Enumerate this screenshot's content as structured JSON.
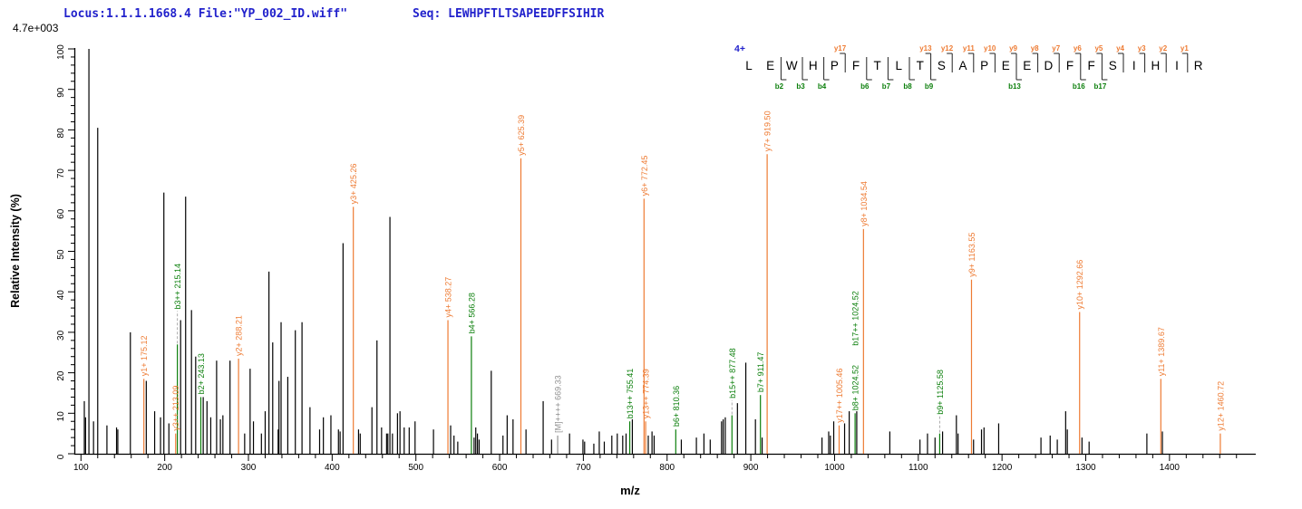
{
  "header": {
    "locus_file": "Locus:1.1.1.1668.4 File:\"YP_002_ID.wiff\"",
    "seq_label": "Seq: LEWHPFTLTSAPEEDFFSIHIR",
    "max_intensity": "4.7e+003"
  },
  "colors": {
    "header_blue": "#2222CC",
    "y_ion": "#EE7B33",
    "b_ion": "#0B7F0B",
    "precursor_gray": "#8F8F8F",
    "axis": "#000000"
  },
  "sequence_panel": {
    "charge_label": "4+",
    "sequence": "LEWHPFTLTSAPEEDFFSIHIR",
    "y_ions": [
      {
        "gap": 5,
        "label": "y17"
      },
      {
        "gap": 9,
        "label": "y13"
      },
      {
        "gap": 10,
        "label": "y12"
      },
      {
        "gap": 11,
        "label": "y11"
      },
      {
        "gap": 12,
        "label": "y10"
      },
      {
        "gap": 13,
        "label": "y9"
      },
      {
        "gap": 14,
        "label": "y8"
      },
      {
        "gap": 15,
        "label": "y7"
      },
      {
        "gap": 16,
        "label": "y6"
      },
      {
        "gap": 17,
        "label": "y5"
      },
      {
        "gap": 18,
        "label": "y4"
      },
      {
        "gap": 19,
        "label": "y3"
      },
      {
        "gap": 20,
        "label": "y2"
      },
      {
        "gap": 21,
        "label": "y1"
      }
    ],
    "b_ions": [
      {
        "gap": 2,
        "label": "b2"
      },
      {
        "gap": 3,
        "label": "b3"
      },
      {
        "gap": 4,
        "label": "b4"
      },
      {
        "gap": 6,
        "label": "b6"
      },
      {
        "gap": 7,
        "label": "b7"
      },
      {
        "gap": 8,
        "label": "b8"
      },
      {
        "gap": 9,
        "label": "b9"
      },
      {
        "gap": 13,
        "label": "b13"
      },
      {
        "gap": 16,
        "label": "b16"
      },
      {
        "gap": 17,
        "label": "b17"
      }
    ]
  },
  "chart_data": {
    "type": "bar",
    "subtype": "ms2-stick-spectrum",
    "title": "",
    "xlabel": "m/z",
    "ylabel": "Relative  Intensity (%)",
    "xlim": [
      90,
      1490
    ],
    "ylim": [
      0,
      100
    ],
    "x_major_ticks": [
      100,
      200,
      300,
      400,
      500,
      600,
      700,
      800,
      900,
      1000,
      1100,
      1200,
      1300,
      1400
    ],
    "x_minor_step": 20,
    "y_major_ticks": [
      0,
      10,
      20,
      30,
      40,
      50,
      60,
      70,
      80,
      90,
      100
    ],
    "y_minor_step": 2,
    "grid": false,
    "legend": "none",
    "peak_schema": [
      "mz",
      "intensity_pct",
      "label",
      "ion_type",
      "label_height_pct"
    ],
    "peaks": [
      [
        104,
        13
      ],
      [
        105.5,
        9
      ],
      [
        109.5,
        100
      ],
      [
        115,
        8
      ],
      [
        120,
        80.5
      ],
      [
        131,
        7
      ],
      [
        142.5,
        6.5
      ],
      [
        144,
        6
      ],
      [
        159,
        30
      ],
      [
        175.12,
        18.5,
        "y1+ 175.12",
        "y"
      ],
      [
        178,
        18
      ],
      [
        188,
        10.5
      ],
      [
        195,
        9
      ],
      [
        199,
        64.5
      ],
      [
        205,
        7.5
      ],
      [
        213.09,
        5,
        "y3++ 213.09",
        "y"
      ],
      [
        215.14,
        27,
        "b3++ 215.14",
        "b",
        35
      ],
      [
        219,
        33
      ],
      [
        225,
        63.5
      ],
      [
        232,
        35.5
      ],
      [
        237,
        24
      ],
      [
        243.13,
        14,
        "b2+ 243.13",
        "b"
      ],
      [
        246,
        14
      ],
      [
        250.5,
        13
      ],
      [
        255,
        9
      ],
      [
        262,
        23
      ],
      [
        266.5,
        8.5
      ],
      [
        269.5,
        9.5
      ],
      [
        278,
        23
      ],
      [
        288.21,
        23.5,
        "y2+ 288.21",
        "y"
      ],
      [
        295.5,
        5
      ],
      [
        302,
        21
      ],
      [
        306,
        8
      ],
      [
        315.5,
        5
      ],
      [
        320,
        10.5
      ],
      [
        324.5,
        45
      ],
      [
        329,
        27.5
      ],
      [
        335.5,
        6
      ],
      [
        336.5,
        18
      ],
      [
        339,
        32.5
      ],
      [
        347,
        19
      ],
      [
        356,
        30.5
      ],
      [
        364,
        32.5
      ],
      [
        373.5,
        11.5
      ],
      [
        385,
        6
      ],
      [
        389.5,
        9
      ],
      [
        398.5,
        9.5
      ],
      [
        407.5,
        6
      ],
      [
        409.5,
        5.5
      ],
      [
        413,
        52
      ],
      [
        425.26,
        61,
        "y3+ 425.26",
        "y"
      ],
      [
        431.5,
        6
      ],
      [
        433.5,
        5
      ],
      [
        447.5,
        11.5
      ],
      [
        453.5,
        28
      ],
      [
        459,
        6.5
      ],
      [
        465,
        5
      ],
      [
        466.5,
        5
      ],
      [
        469,
        58.5
      ],
      [
        472,
        5
      ],
      [
        478,
        10
      ],
      [
        481,
        10.5
      ],
      [
        486,
        6.5
      ],
      [
        492,
        6.5
      ],
      [
        499,
        8
      ],
      [
        521,
        6
      ],
      [
        538.27,
        33,
        "y4+ 538.27",
        "y"
      ],
      [
        541.5,
        7
      ],
      [
        545.5,
        4.5
      ],
      [
        550,
        3
      ],
      [
        566.28,
        29,
        "b4+ 566.28",
        "b"
      ],
      [
        569.5,
        4
      ],
      [
        571.5,
        6.5
      ],
      [
        573.5,
        5
      ],
      [
        575.5,
        3.5
      ],
      [
        590,
        20.5
      ],
      [
        604,
        4.5
      ],
      [
        609,
        9.5
      ],
      [
        616,
        8.5
      ],
      [
        625.39,
        73,
        "y5+ 625.39",
        "y"
      ],
      [
        631.5,
        6
      ],
      [
        652,
        13
      ],
      [
        662,
        3.5
      ],
      [
        669.33,
        4.5,
        "[M]++++ 669.33",
        "M"
      ],
      [
        683.5,
        5
      ],
      [
        699.5,
        3.5
      ],
      [
        701.5,
        3
      ],
      [
        712.5,
        2.5
      ],
      [
        719,
        5.5
      ],
      [
        725,
        3
      ],
      [
        734,
        4.5
      ],
      [
        740.5,
        5
      ],
      [
        747,
        4.5
      ],
      [
        751,
        5
      ],
      [
        755.41,
        8,
        "b13++ 755.41",
        "b"
      ],
      [
        758.5,
        8.5
      ],
      [
        772.45,
        63,
        "y6+ 772.45",
        "y"
      ],
      [
        774.39,
        8,
        "y13++ 774.39",
        "y"
      ],
      [
        777.5,
        4.5
      ],
      [
        782,
        5.5
      ],
      [
        784.5,
        4.5
      ],
      [
        810.36,
        6,
        "b6+ 810.36",
        "b"
      ],
      [
        817,
        3.5
      ],
      [
        835,
        4
      ],
      [
        844,
        5
      ],
      [
        851.5,
        3.5
      ],
      [
        865,
        8
      ],
      [
        867,
        8.5
      ],
      [
        869.5,
        9
      ],
      [
        877.48,
        9.5,
        "b15++ 877.48",
        "b",
        13
      ],
      [
        884,
        12.5
      ],
      [
        894,
        22.5
      ],
      [
        905.5,
        8.5
      ],
      [
        911.47,
        14.5,
        "b7+ 911.47",
        "b"
      ],
      [
        913.5,
        4
      ],
      [
        919.5,
        74,
        "y7+ 919.50",
        "y"
      ],
      [
        985,
        4
      ],
      [
        993,
        5.5
      ],
      [
        995,
        4.5
      ],
      [
        999,
        8
      ],
      [
        1005.46,
        7,
        "y17++ 1005.46",
        "y"
      ],
      [
        1012,
        7.5
      ],
      [
        1017.5,
        10.5
      ],
      [
        1024.52,
        10,
        "b8+ 1024.52",
        "b"
      ],
      [
        1026.5,
        10.5
      ],
      [
        1034.54,
        55.5,
        "y8+ 1034.54",
        "y"
      ],
      [
        1066,
        5.5
      ],
      [
        1102,
        3.5
      ],
      [
        1111,
        5
      ],
      [
        1120,
        4
      ],
      [
        1125.58,
        5,
        "b9+ 1125.58",
        "b",
        9
      ],
      [
        1129,
        5.5
      ],
      [
        1145.5,
        9.5
      ],
      [
        1147.5,
        5
      ],
      [
        1163.55,
        43,
        "y9+ 1163.55",
        "y"
      ],
      [
        1166,
        3.5
      ],
      [
        1175.5,
        6
      ],
      [
        1178.5,
        6.5
      ],
      [
        1196,
        7.5
      ],
      [
        1246.5,
        4
      ],
      [
        1257.5,
        4.5
      ],
      [
        1266,
        3.5
      ],
      [
        1276,
        10.5
      ],
      [
        1278,
        6
      ],
      [
        1292.66,
        35,
        "y10+ 1292.66",
        "y"
      ],
      [
        1295.5,
        4
      ],
      [
        1304,
        3
      ],
      [
        1373,
        5
      ],
      [
        1389.67,
        18.5,
        "y11+ 1389.67",
        "y"
      ],
      [
        1391.5,
        5.5
      ],
      [
        1460.72,
        5,
        "y12+ 1460.72",
        "y"
      ]
    ],
    "extra_peak_labels": [
      {
        "mz": 1024.52,
        "label": "b17++ 1024.52",
        "ion_type": "b",
        "label_height_pct": 26
      }
    ]
  }
}
